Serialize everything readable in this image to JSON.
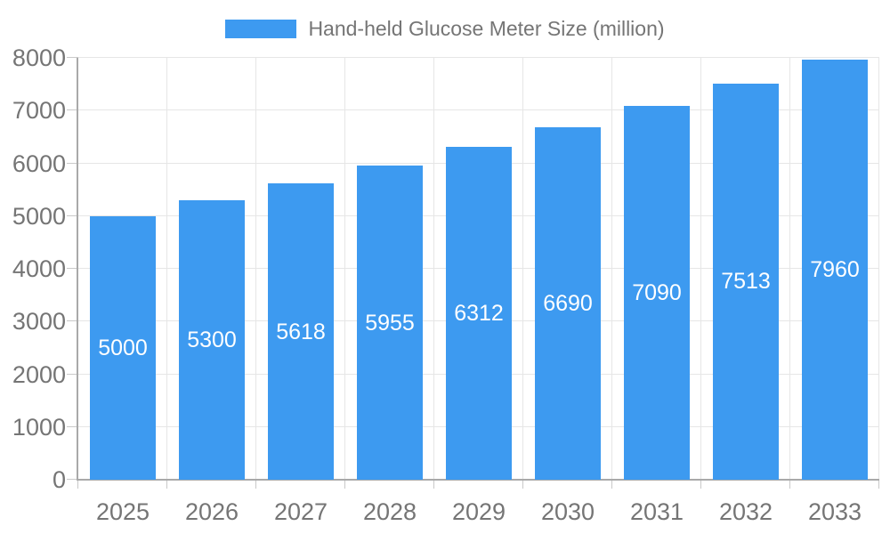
{
  "chart_data": {
    "type": "bar",
    "title": "Hand-held Glucose Meter Size (million)",
    "legend_position": "top",
    "categories": [
      "2025",
      "2026",
      "2027",
      "2028",
      "2029",
      "2030",
      "2031",
      "2032",
      "2033"
    ],
    "series": [
      {
        "name": "Hand-held Glucose Meter Size (million)",
        "values": [
          5000,
          5300,
          5618,
          5955,
          6312,
          6690,
          7090,
          7513,
          7960
        ]
      }
    ],
    "bar_value_labels_shown": true,
    "xlabel": "",
    "ylabel": "",
    "ylim": [
      0,
      8000
    ],
    "yticks": [
      0,
      1000,
      2000,
      3000,
      4000,
      5000,
      6000,
      7000,
      8000
    ],
    "grid": true,
    "colors": {
      "bar": "#3d9af0",
      "bar_label_text": "#ffffff",
      "axis_text": "#757575",
      "axis_line": "#a9a9a9",
      "tick_line": "#c9c9c9",
      "gridline": "#e6e6e6",
      "background": "#ffffff"
    }
  }
}
